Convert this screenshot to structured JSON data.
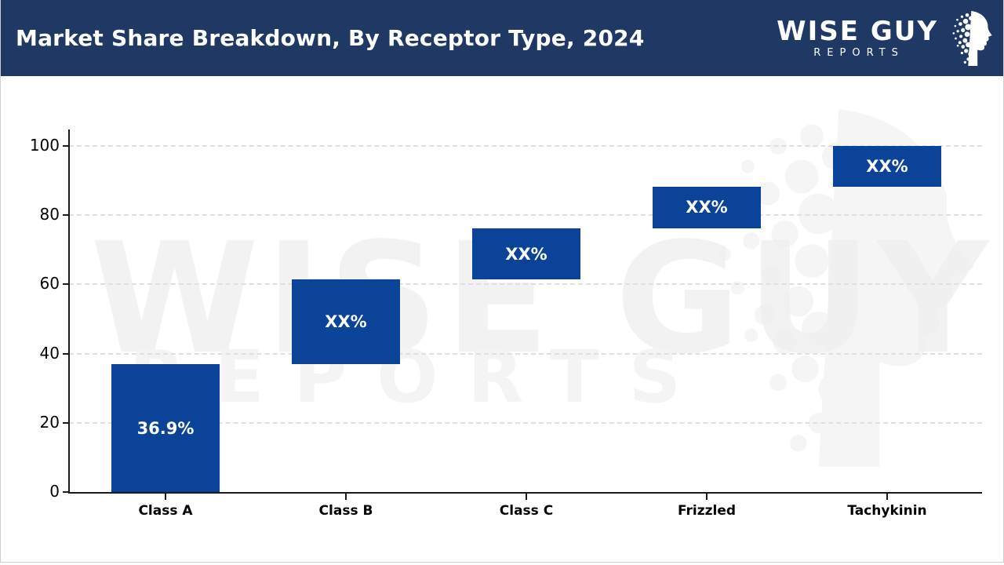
{
  "header": {
    "title": "Market Share Breakdown, By Receptor Type, 2024",
    "bg_color": "#1f3864",
    "logo": {
      "line1": "WISE GUY",
      "line2": "REPORTS"
    }
  },
  "watermark": {
    "line1": "WISE GUY",
    "line2": "REPORTS"
  },
  "chart_data": {
    "type": "bar",
    "subtype": "waterfall",
    "title": "Market Share Breakdown, By Receptor Type, 2024",
    "xlabel": "",
    "ylabel": "",
    "categories": [
      "Class A",
      "Class B",
      "Class C",
      "Frizzled",
      "Tachykinin"
    ],
    "segments": [
      {
        "category": "Class A",
        "start": 0,
        "end": 36.9,
        "label": "36.9%"
      },
      {
        "category": "Class B",
        "start": 36.9,
        "end": 61.4,
        "label": "XX%"
      },
      {
        "category": "Class C",
        "start": 61.4,
        "end": 76.2,
        "label": "XX%"
      },
      {
        "category": "Frizzled",
        "start": 76.2,
        "end": 88.2,
        "label": "XX%"
      },
      {
        "category": "Tachykinin",
        "start": 88.2,
        "end": 100,
        "label": "XX%"
      }
    ],
    "yticks": [
      0,
      20,
      40,
      60,
      80,
      100
    ],
    "ylim": [
      0,
      105
    ],
    "grid": "horizontal-dashed",
    "legend": "none",
    "bar_color": "#0b4399",
    "bar_label_color": "#ffffff",
    "axis_color": "#1a1a1a",
    "gridline_color": "#e0e0e0"
  }
}
